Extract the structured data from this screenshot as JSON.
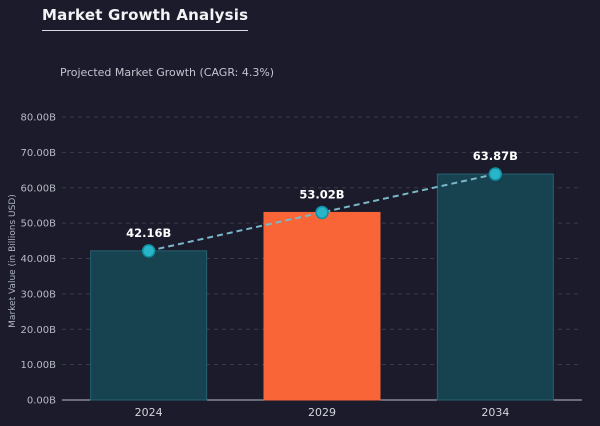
{
  "title": "Market Growth Analysis",
  "subtitle": "Projected Market Growth (CAGR: 4.3%)",
  "colors": {
    "background": "#1b1b2c",
    "teal_bar": "#17424f",
    "teal_bar_stroke": "#266273",
    "orange_bar": "#f96537",
    "trend_line": "#79b8c8",
    "marker_fill": "#2ab4c8",
    "marker_stroke": "#0e8fa3",
    "gridline": "rgba(255,255,255,0.14)",
    "axis_line": "#b9bdc6",
    "tick_text": "#b6bac3",
    "x_label_text": "#d2d5db",
    "value_label_text": "#ffffff"
  },
  "chart_data": {
    "type": "bar",
    "title": "Market Growth Analysis",
    "subtitle": "Projected Market Growth (CAGR: 4.3%)",
    "categories": [
      "2024",
      "2029",
      "2034"
    ],
    "values": [
      42.16,
      53.02,
      63.87
    ],
    "value_labels": [
      "42.16B",
      "53.02B",
      "63.87B"
    ],
    "bar_color_keys": [
      "teal_bar",
      "orange_bar",
      "teal_bar"
    ],
    "xlabel": "",
    "ylabel": "Market Value (in Billions USD)",
    "ylim": [
      0,
      80
    ],
    "ytick_step": 10,
    "ytick_labels": [
      "0.00B",
      "10.00B",
      "20.00B",
      "30.00B",
      "40.00B",
      "50.00B",
      "60.00B",
      "70.00B",
      "80.00B"
    ],
    "grid": true,
    "overlay": {
      "type": "line",
      "style": "dashed",
      "markers": true,
      "values": [
        42.16,
        53.02,
        63.87
      ]
    },
    "legend": "none"
  }
}
